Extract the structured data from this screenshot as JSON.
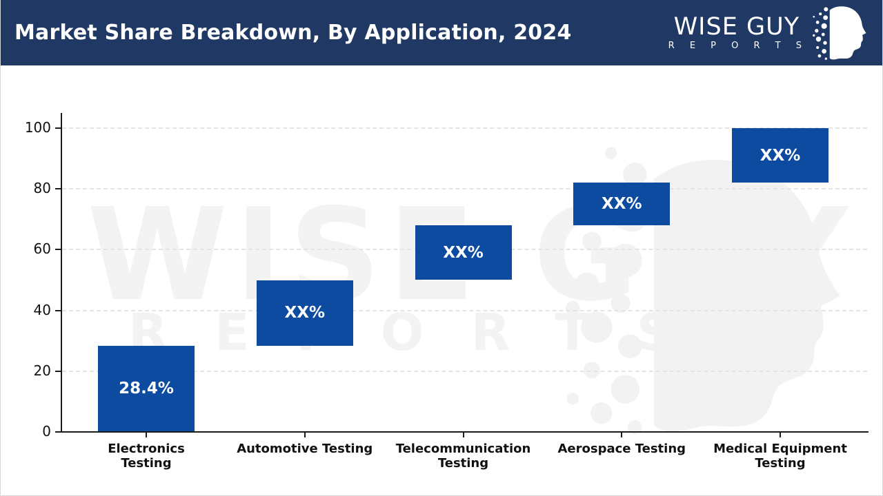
{
  "header": {
    "title": "Market Share Breakdown, By Application, 2024",
    "bg_color": "#1f3864",
    "logo": {
      "line1": "WISE GUY",
      "line2": "R E P O R T S"
    }
  },
  "watermark": {
    "line1": "WISE GUY",
    "line2": "REPORTS"
  },
  "chart_data": {
    "type": "bar",
    "subtype": "waterfall-stepped-segments",
    "title": "Market Share Breakdown, By Application, 2024",
    "categories": [
      "Electronics Testing",
      "Automotive Testing",
      "Telecommunication Testing",
      "Aerospace Testing",
      "Medical Equipment Testing"
    ],
    "category_lines": [
      "Electronics\nTesting",
      "Automotive Testing",
      "Telecommunication\nTesting",
      "Aerospace Testing",
      "Medical Equipment\nTesting"
    ],
    "series": [
      {
        "name": "Market Share (%)",
        "segments": [
          {
            "category": "Electronics Testing",
            "start": 0,
            "end": 28.4,
            "label": "28.4%"
          },
          {
            "category": "Automotive Testing",
            "start": 28.4,
            "end": 50,
            "label": "XX%"
          },
          {
            "category": "Telecommunication Testing",
            "start": 50,
            "end": 68,
            "label": "XX%"
          },
          {
            "category": "Aerospace Testing",
            "start": 68,
            "end": 82,
            "label": "XX%"
          },
          {
            "category": "Medical Equipment Testing",
            "start": 82,
            "end": 100,
            "label": "XX%"
          }
        ]
      }
    ],
    "bar_color": "#0c4ba0",
    "xlabel": "",
    "ylabel": "",
    "ylim": [
      0,
      100
    ],
    "yticks": [
      0,
      20,
      40,
      60,
      80,
      100
    ],
    "grid": "horizontal-dashed",
    "legend": "none"
  }
}
